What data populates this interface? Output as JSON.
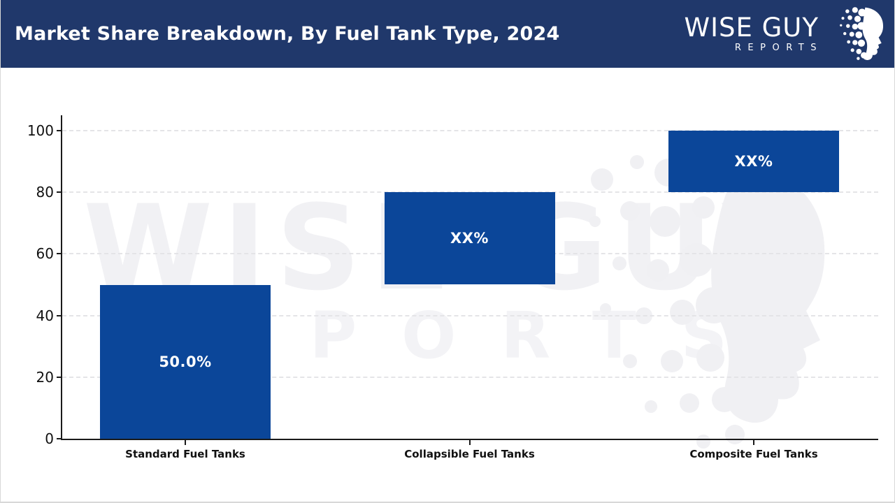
{
  "header": {
    "title": "Market Share Breakdown, By Fuel Tank Type, 2024",
    "background": "#20386B",
    "logo": {
      "line1": "WISE GUY",
      "line2": "REPORTS"
    }
  },
  "watermark": {
    "line1": "WISE GUY",
    "line2": "REPORTS"
  },
  "chart_data": {
    "type": "bar",
    "subtype": "floating-range-bars",
    "title": "Market Share Breakdown, By Fuel Tank Type, 2024",
    "categories": [
      "Standard Fuel Tanks",
      "Collapsible Fuel Tanks",
      "Composite Fuel Tanks"
    ],
    "series": [
      {
        "name": "Standard Fuel Tanks",
        "start": 0,
        "end": 50,
        "label": "50.0%"
      },
      {
        "name": "Collapsible Fuel Tanks",
        "start": 50,
        "end": 80,
        "label": "XX%"
      },
      {
        "name": "Composite Fuel Tanks",
        "start": 80,
        "end": 100,
        "label": "XX%"
      }
    ],
    "yticks": [
      0,
      20,
      40,
      60,
      80,
      100
    ],
    "ylim": [
      0,
      105
    ],
    "xlabel": "",
    "ylabel": "",
    "bar_color": "#0B4699",
    "grid": "horizontal-dashed",
    "legend": "none"
  },
  "colors": {
    "header_bg": "#20386B",
    "bar": "#0B4699",
    "axis": "#1a1a1a",
    "gridline": "#e4e4e7",
    "watermark": "#f1f1f4",
    "border": "#d8d8d8"
  }
}
